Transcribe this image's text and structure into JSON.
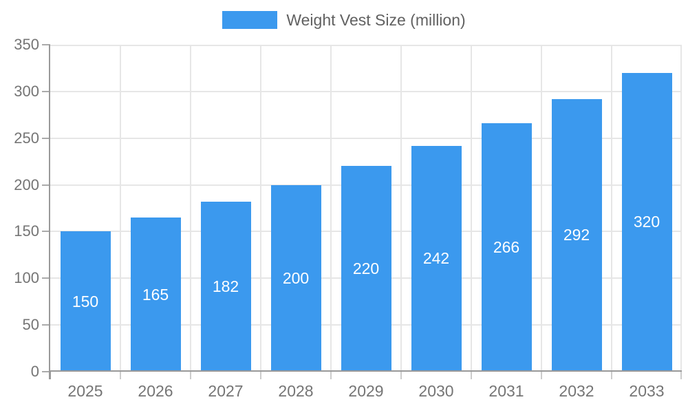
{
  "chart_data": {
    "type": "bar",
    "title": "Weight Vest Size (million)",
    "categories": [
      "2025",
      "2026",
      "2027",
      "2028",
      "2029",
      "2030",
      "2031",
      "2032",
      "2033"
    ],
    "series": [
      {
        "name": "Weight Vest Size (million)",
        "values": [
          150,
          165,
          182,
          200,
          220,
          242,
          266,
          292,
          320
        ]
      }
    ],
    "values": [
      150,
      165,
      182,
      200,
      220,
      242,
      266,
      292,
      320
    ],
    "value_labels": [
      "150",
      "165",
      "182",
      "200",
      "220",
      "242",
      "266",
      "292",
      "320"
    ],
    "xlabel": "",
    "ylabel": "",
    "ylim": [
      0,
      350
    ],
    "yticks": [
      0,
      50,
      100,
      150,
      200,
      250,
      300,
      350
    ],
    "grid": true,
    "legend_position": "top",
    "value_label_position": "inside-center"
  },
  "legend": {
    "label": "Weight Vest Size (million)"
  },
  "colors": {
    "bar": "#3B99EE",
    "value_label": "#FFFFFF",
    "gridline": "#E6E6E6",
    "axis_line": "#999999",
    "tick_y": "#AAAAAA",
    "tick_x": "#CCCCCC",
    "tick_label": "#757575",
    "legend_text": "#616161",
    "background": "#FFFFFF"
  }
}
